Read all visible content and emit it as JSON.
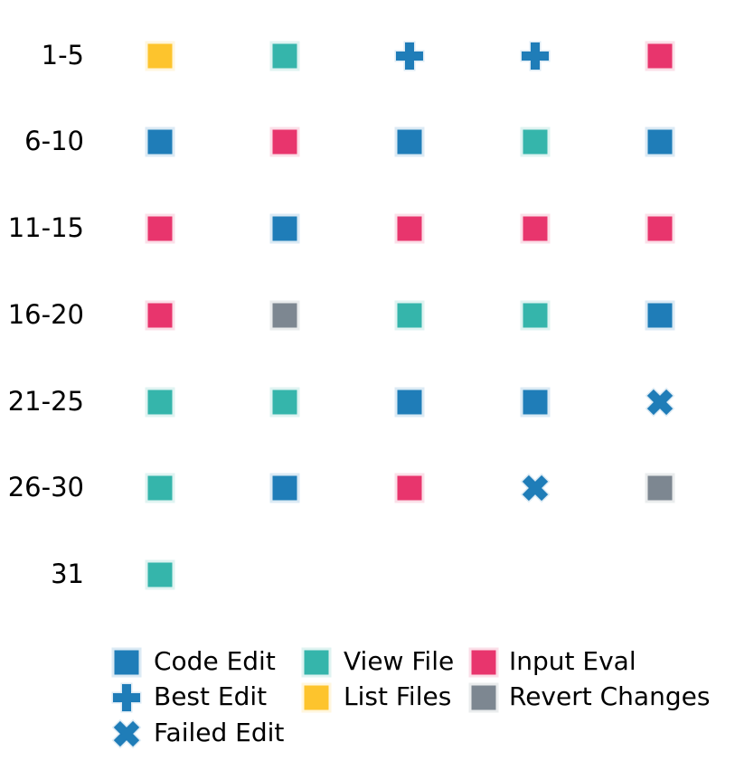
{
  "chart_data": {
    "type": "scatter",
    "title": "",
    "xlabel": "",
    "ylabel": "",
    "grid": false,
    "background": "#ffffff",
    "text_color": "#000000",
    "legend_position": "bottom",
    "legend_columns": 3,
    "row_categories": [
      "1-5",
      "6-10",
      "11-15",
      "16-20",
      "21-25",
      "26-30",
      "31"
    ],
    "rows": [
      {
        "label": "1-5",
        "markers": [
          "list_files",
          "view_file",
          "best_edit",
          "best_edit",
          "input_eval"
        ]
      },
      {
        "label": "6-10",
        "markers": [
          "code_edit",
          "input_eval",
          "code_edit",
          "view_file",
          "code_edit"
        ]
      },
      {
        "label": "11-15",
        "markers": [
          "input_eval",
          "code_edit",
          "input_eval",
          "input_eval",
          "input_eval"
        ]
      },
      {
        "label": "16-20",
        "markers": [
          "input_eval",
          "revert_changes",
          "view_file",
          "view_file",
          "code_edit"
        ]
      },
      {
        "label": "21-25",
        "markers": [
          "view_file",
          "view_file",
          "code_edit",
          "code_edit",
          "failed_edit"
        ]
      },
      {
        "label": "26-30",
        "markers": [
          "view_file",
          "code_edit",
          "input_eval",
          "failed_edit",
          "revert_changes"
        ]
      },
      {
        "label": "31",
        "markers": [
          "view_file"
        ]
      }
    ],
    "legend": [
      {
        "key": "code_edit",
        "label": "Code Edit",
        "shape": "square",
        "color": "#1f7db8",
        "icon": "blue-square-icon"
      },
      {
        "key": "view_file",
        "label": "View File",
        "shape": "square",
        "color": "#35b5ab",
        "icon": "teal-square-icon"
      },
      {
        "key": "input_eval",
        "label": "Input Eval",
        "shape": "square",
        "color": "#e8356d",
        "icon": "pink-square-icon"
      },
      {
        "key": "best_edit",
        "label": "Best Edit",
        "shape": "plus",
        "color": "#1f7db8",
        "icon": "plus-icon"
      },
      {
        "key": "list_files",
        "label": "List Files",
        "shape": "square",
        "color": "#fdc42d",
        "icon": "yellow-square-icon"
      },
      {
        "key": "revert_changes",
        "label": "Revert Changes",
        "shape": "square",
        "color": "#7d8791",
        "icon": "gray-square-icon"
      },
      {
        "key": "failed_edit",
        "label": "Failed Edit",
        "shape": "x",
        "color": "#1f7db8",
        "icon": "x-icon"
      }
    ]
  }
}
